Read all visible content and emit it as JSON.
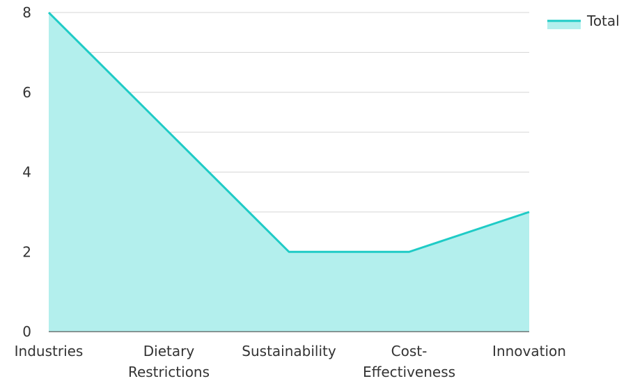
{
  "chart_data": {
    "type": "area",
    "categories": [
      "Industries",
      "Dietary Restrictions",
      "Sustainability",
      "Cost-Effectiveness",
      "Innovation"
    ],
    "x_tick_lines": [
      [
        "Industries"
      ],
      [
        "Dietary",
        "Restrictions"
      ],
      [
        "Sustainability"
      ],
      [
        "Cost-",
        "Effectiveness"
      ],
      [
        "Innovation"
      ]
    ],
    "series": [
      {
        "name": "Total",
        "values": [
          8,
          5,
          2,
          2,
          3
        ]
      }
    ],
    "ylim": [
      0,
      8
    ],
    "y_ticks": [
      "0",
      "2",
      "4",
      "6",
      "8"
    ],
    "grid": true,
    "legend_position": "top-right",
    "colors": {
      "line": "#1fcbc6",
      "fill": "#b3efed",
      "grid": "#d5d5d5",
      "axis": "#333333"
    }
  }
}
